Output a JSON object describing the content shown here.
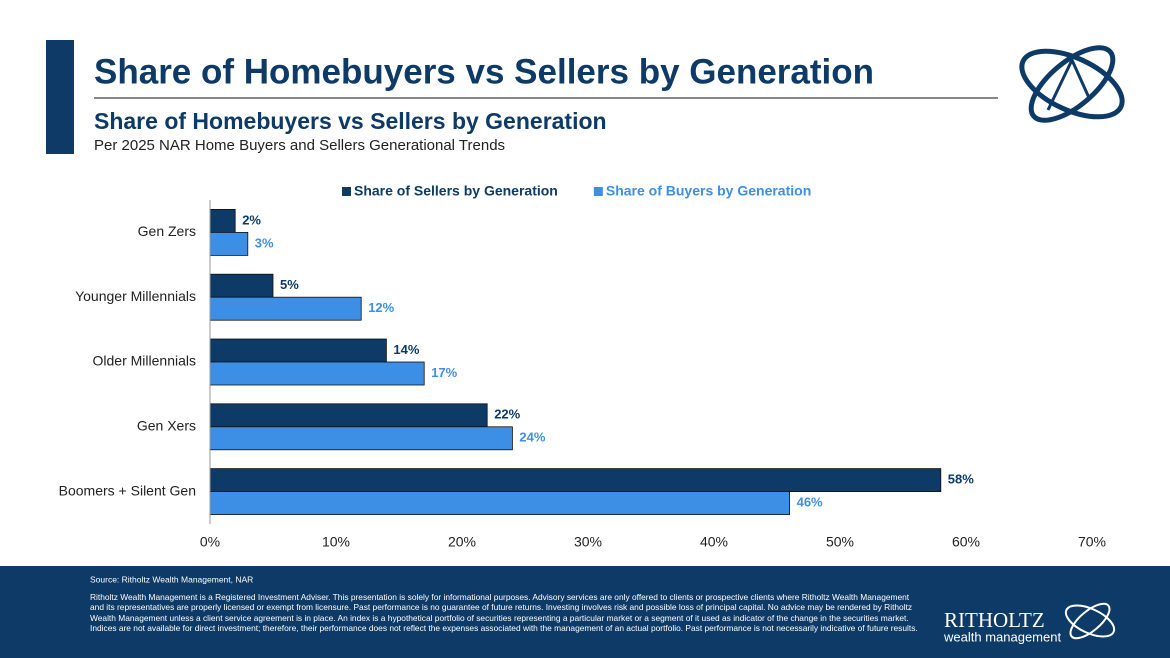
{
  "slide_title": "Share of Homebuyers vs Sellers by Generation",
  "chart_data": {
    "type": "hbar",
    "title": "Share of Homebuyers vs Sellers by Generation",
    "subtitle": "Per 2025 NAR Home Buyers and Sellers Generational Trends",
    "categories": [
      "Gen Zers",
      "Younger Millennials",
      "Older Millennials",
      "Gen Xers",
      "Boomers + Silent Gen"
    ],
    "series": [
      {
        "name": "Share of Sellers by Generation",
        "color": "#0d3a66",
        "values": [
          2,
          5,
          14,
          22,
          58
        ],
        "value_labels": [
          "2%",
          "5%",
          "14%",
          "22%",
          "58%"
        ]
      },
      {
        "name": "Share of Buyers by Generation",
        "color": "#3d8fe6",
        "values": [
          3,
          12,
          17,
          24,
          46
        ],
        "value_labels": [
          "3%",
          "12%",
          "17%",
          "24%",
          "46%"
        ]
      }
    ],
    "xlim": [
      0,
      70
    ],
    "xticks": [
      {
        "value": 0,
        "label": "0%"
      },
      {
        "value": 10,
        "label": "10%"
      },
      {
        "value": 20,
        "label": "20%"
      },
      {
        "value": 30,
        "label": "30%"
      },
      {
        "value": 40,
        "label": "40%"
      },
      {
        "value": 50,
        "label": "50%"
      },
      {
        "value": 60,
        "label": "60%"
      },
      {
        "value": 70,
        "label": "70%"
      }
    ],
    "legend": "top"
  },
  "footer": {
    "source": "Source: Ritholtz Wealth Management, NAR",
    "disclaimer": "Ritholtz Wealth Management is a Registered Investment Adviser. This presentation is solely for informational purposes. Advisory services are only offered to clients or prospective clients where Ritholtz Wealth Management and its representatives are properly licensed or exempt from licensure. Past performance is no guarantee of future returns. Investing involves risk and possible loss of principal capital. No advice may be rendered by Ritholtz Wealth Management unless a client service agreement is in place. An index is a hypothetical portfolio of securities representing a particular market or a segment of it used as indicator of the change in the securities market. Indices are not available for direct investment; therefore, their performance does not reflect the expenses associated with the management of an actual portfolio. Past performance is not necessarily indicative of future results.",
    "logo_name": "RITHOLTZ",
    "logo_sub": "wealth management"
  }
}
